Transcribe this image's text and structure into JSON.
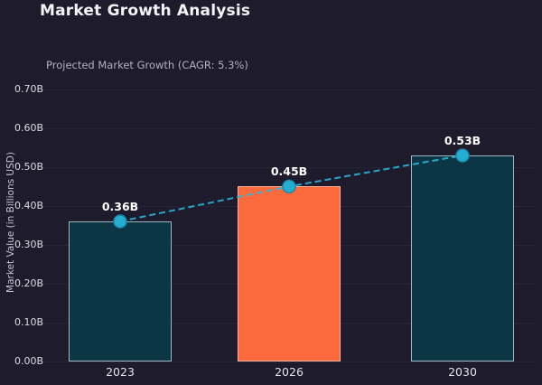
{
  "header": {
    "title": "Market Growth Analysis",
    "subtitle": "Projected Market Growth (CAGR: 5.3%)"
  },
  "chart_data": {
    "type": "bar",
    "title": "Market Growth Analysis",
    "subtitle": "Projected Market Growth (CAGR: 5.3%)",
    "cagr_percent": 5.3,
    "categories": [
      "2023",
      "2026",
      "2030"
    ],
    "values": [
      0.36,
      0.45,
      0.53
    ],
    "value_labels": [
      "0.36B",
      "0.45B",
      "0.53B"
    ],
    "xlabel": "",
    "ylabel": "Market Value (in Billions USD)",
    "ylim": [
      0,
      0.7
    ],
    "ytick_values": [
      0,
      0.1,
      0.2,
      0.3,
      0.4,
      0.5,
      0.6,
      0.7
    ],
    "ytick_labels": [
      "0.00B",
      "0.10B",
      "0.20B",
      "0.30B",
      "0.40B",
      "0.50B",
      "0.60B",
      "0.70B"
    ],
    "grid": "horizontal-faint",
    "legend": "none",
    "overlay_line": {
      "type": "dashed-trend-line-with-markers",
      "x": [
        "2023",
        "2026",
        "2030"
      ],
      "y": [
        0.36,
        0.45,
        0.53
      ]
    },
    "colors": {
      "background": "#1d1b2c",
      "bar_fills": [
        "#0c3644",
        "#fb693c",
        "#0c3644"
      ],
      "bar_borders": [
        "#9db9c3",
        "#ffb199",
        "#9db9c3"
      ],
      "trend_line": "#2bb5d8",
      "marker": "#25aed2",
      "marker_edge": "#1a87a8",
      "title_text": "#f3f2f6",
      "subtitle_text": "#b2b0bf",
      "axis_text": "#dcdbe3"
    }
  }
}
